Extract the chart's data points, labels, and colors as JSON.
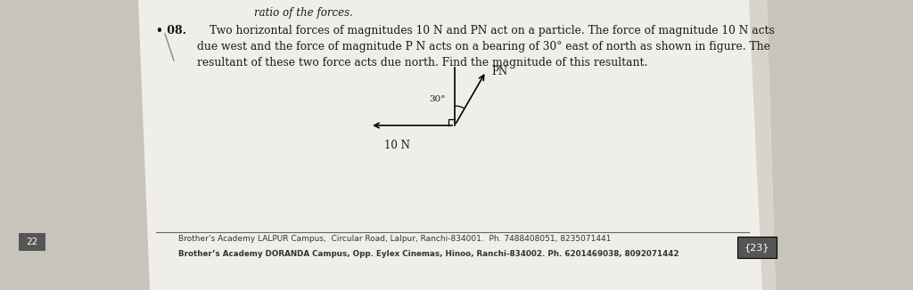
{
  "bg_color": "#c8c4bc",
  "paper_color": "#f0eee9",
  "top_text": "ratio of the forces.",
  "q_number": "08.",
  "question_line1": "Two horizontal forces of magnitudes 10 N and PN act on a particle. The force of magnitude 10 N acts",
  "question_line2": "due west and the force of magnitude P N acts on a bearing of 30° east of north as shown in figure. The",
  "question_line3": "resultant of these two force acts due north. Find the magnitude of this resultant.",
  "label_10N": "10 N",
  "label_PN": "PN",
  "label_30": "30°",
  "footer_line1": "Brother’s Academy LALPUR Campus,  Circular Road, Lalpur, Ranchi-834001.  Ph. 7488408051, 8235071441",
  "footer_line2": "Brother’s Academy DORANDA Campus, Opp. Eylex Cinemas, Hinoo, Ranchi-834002. Ph. 6201469038, 8092071442",
  "footer_box_text": "{23}",
  "page_number": "22",
  "text_color": "#1a1a1a",
  "dark_text_color": "#222222",
  "footer_color": "#333333",
  "box_bg": "#555555",
  "box_text_color": "#ffffff",
  "line_color": "#444444",
  "bullet_color": "#111111"
}
